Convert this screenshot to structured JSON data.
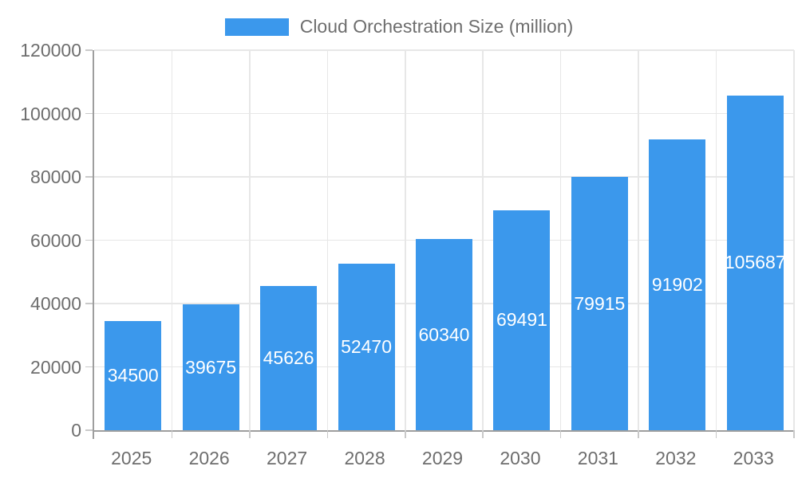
{
  "chart_data": {
    "type": "bar",
    "title": "Cloud Orchestration Size (million)",
    "categories": [
      "2025",
      "2026",
      "2027",
      "2028",
      "2029",
      "2030",
      "2031",
      "2032",
      "2033"
    ],
    "series": [
      {
        "name": "Cloud Orchestration Size (million)",
        "values": [
          34500,
          39675,
          45626,
          52470,
          60340,
          69491,
          79915,
          91902,
          105687
        ],
        "color": "#3b98ec"
      }
    ],
    "xlabel": "",
    "ylabel": "",
    "ylim": [
      0,
      120000
    ],
    "yticks": [
      0,
      20000,
      40000,
      60000,
      80000,
      100000,
      120000
    ],
    "grid": true,
    "legend_position": "top-center",
    "value_labels": {
      "position": "inside-center",
      "color": "#ffffff"
    },
    "colors": {
      "bar": "#3b98ec",
      "grid": "#e7e7e7",
      "axis": "#9e9e9e",
      "tick": "#c9c9c9",
      "tick_label": "#6e6e6e",
      "legend_label": "#6e6e6e",
      "background": "#ffffff"
    }
  }
}
